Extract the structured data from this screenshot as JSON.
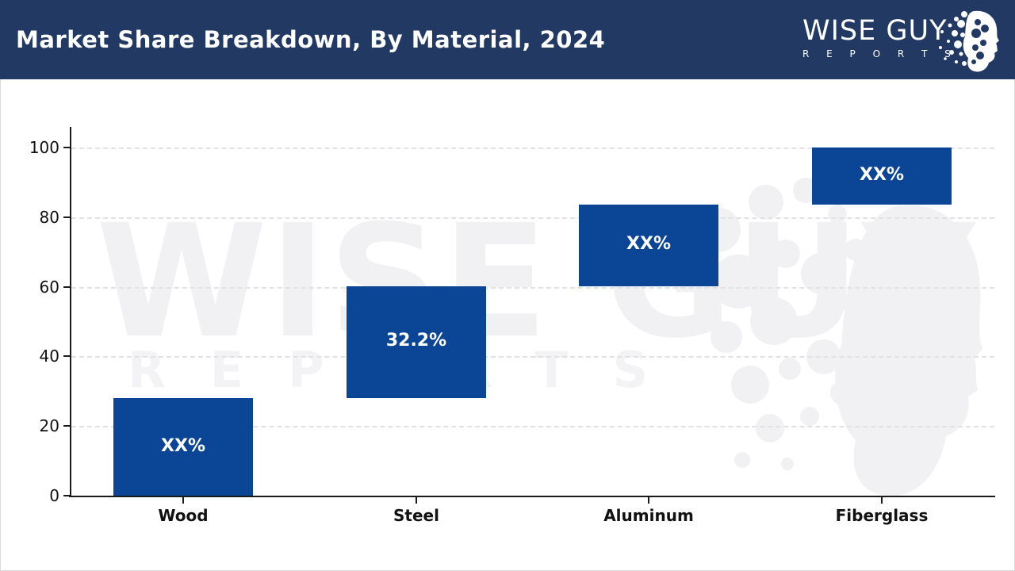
{
  "header": {
    "title": "Market Share Breakdown, By Material, 2024",
    "brand_line1": "WISE GUY",
    "brand_line2": "R E P O R T S"
  },
  "watermark": {
    "line1": "WISE GUY",
    "line2": "REPORTS"
  },
  "chart_data": {
    "type": "bar",
    "subtype": "waterfall-floating-bars",
    "title": "Market Share Breakdown, By Material, 2024",
    "categories": [
      "Wood",
      "Steel",
      "Aluminum",
      "Fiberglass"
    ],
    "segments": [
      {
        "category": "Wood",
        "start": 0,
        "end": 28,
        "label": "XX%"
      },
      {
        "category": "Steel",
        "start": 28,
        "end": 60.2,
        "label": "32.2%",
        "value": 32.2
      },
      {
        "category": "Aluminum",
        "start": 60.2,
        "end": 83.6,
        "label": "XX%"
      },
      {
        "category": "Fiberglass",
        "start": 83.6,
        "end": 100,
        "label": "XX%"
      }
    ],
    "yticks": [
      0,
      20,
      40,
      60,
      80,
      100
    ],
    "ylim": [
      0,
      106
    ],
    "xlabel": "",
    "ylabel": "",
    "legend": "none",
    "grid": "horizontal-dashed",
    "bar_color": "#0a4596",
    "header_color": "#223963",
    "gridline_color": "#e2e2e5",
    "watermark_color": "#f1f1f3"
  }
}
